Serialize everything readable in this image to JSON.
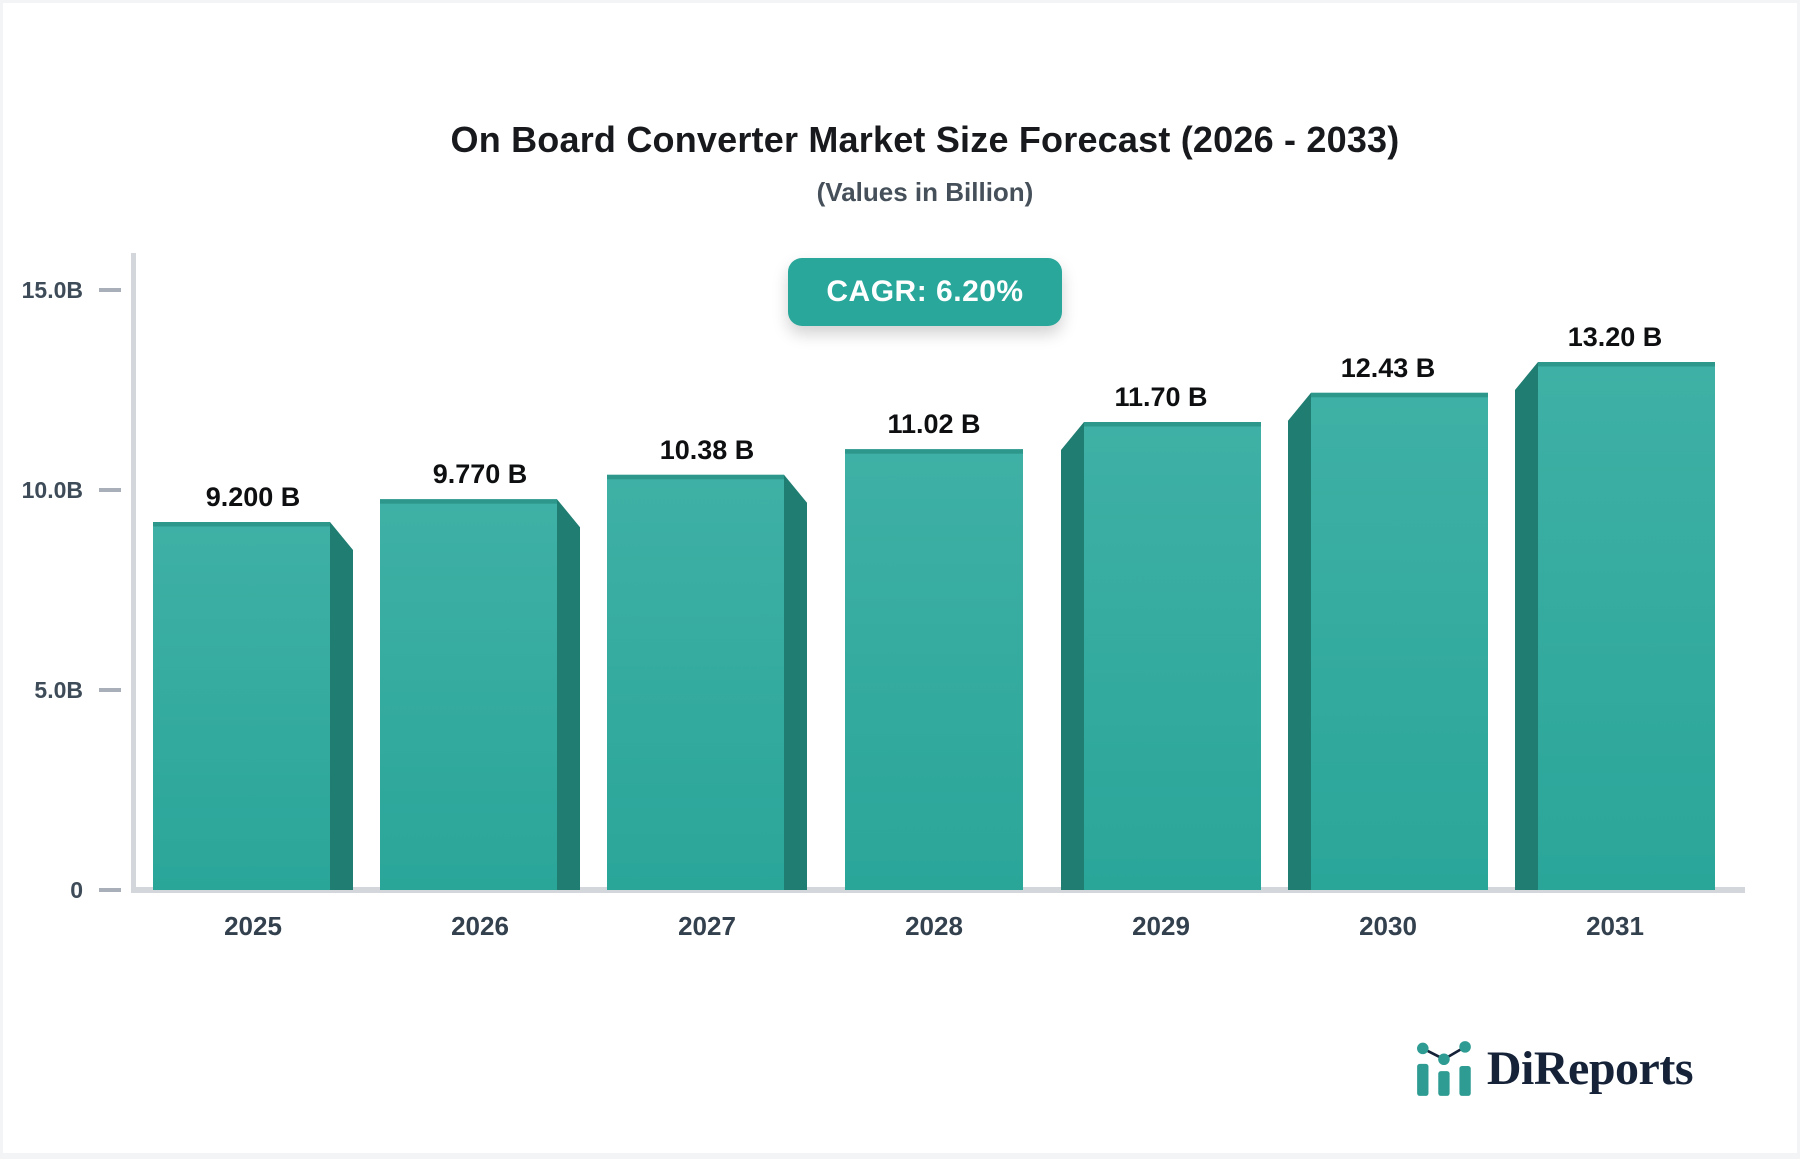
{
  "page": {
    "background": "#F3F4F6",
    "card_background": "#FFFFFF"
  },
  "header": {
    "title": "On Board Converter Market Size Forecast (2026 - 2033)",
    "subtitle": "(Values in Billion)"
  },
  "badge": {
    "label": "CAGR: 6.20%",
    "background": "#2AA79B",
    "text_color": "#FFFFFF"
  },
  "chart_data": {
    "type": "bar",
    "title": "On Board Converter Market Size Forecast (2026 - 2033)",
    "subtitle": "(Values in Billion)",
    "categories": [
      "2025",
      "2026",
      "2027",
      "2028",
      "2029",
      "2030",
      "2031"
    ],
    "values": [
      9.2,
      9.77,
      10.38,
      11.02,
      11.7,
      12.43,
      13.2
    ],
    "value_labels": [
      "9.200 B",
      "9.770 B",
      "10.38 B",
      "11.02 B",
      "11.70 B",
      "12.43 B",
      "13.20 B"
    ],
    "unit": "Billion",
    "cagr_label": "CAGR: 6.20%",
    "ylim": [
      0,
      15
    ],
    "y_ticks": [
      {
        "value": 15,
        "label": "15.0B"
      },
      {
        "value": 10,
        "label": "10.0B"
      },
      {
        "value": 5,
        "label": "5.0B"
      },
      {
        "value": 0,
        "label": "0"
      }
    ],
    "grid": false,
    "legend": "none",
    "bar_style": "3d-extruded",
    "colors": {
      "bar_face_top": "#3FB0A5",
      "bar_face_bottom": "#2AA699",
      "bar_side": "#1F7D72",
      "bar_top_edge": "#2E978C",
      "axis_line": "#D3D6DB",
      "tick_mark": "#A9AFB8",
      "tick_label": "#3E4B58",
      "x_label": "#33404E",
      "value_label": "#0E0F10"
    }
  },
  "footer": {
    "logo_text": "DiReports",
    "logo_icon": "bar-chart-logo-icon",
    "logo_text_color": "#152238",
    "logo_icon_color": "#2E9C93"
  }
}
